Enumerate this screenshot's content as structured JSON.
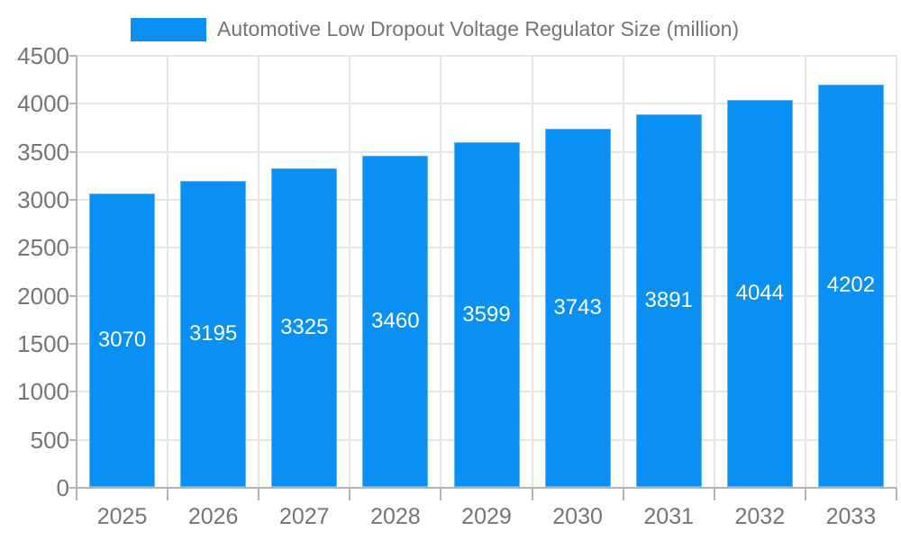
{
  "legend": {
    "label": "Automotive Low Dropout Voltage Regulator Size (million)"
  },
  "chart_data": {
    "type": "bar",
    "title": "Automotive Low Dropout Voltage Regulator Size (million)",
    "categories": [
      "2025",
      "2026",
      "2027",
      "2028",
      "2029",
      "2030",
      "2031",
      "2032",
      "2033"
    ],
    "values": [
      3070,
      3195,
      3325,
      3460,
      3599,
      3743,
      3891,
      4044,
      4202
    ],
    "xlabel": "",
    "ylabel": "",
    "ylim": [
      0,
      4500
    ],
    "ytick_step": 500,
    "yticks": [
      0,
      500,
      1000,
      1500,
      2000,
      2500,
      3000,
      3500,
      4000,
      4500
    ],
    "grid": true,
    "legend_position": "top",
    "value_labels": "centered-inside-bars",
    "colors": {
      "bar": "#0a8ff2",
      "grid": "#e6e6e6",
      "axis": "#b3b3b3",
      "text": "#757575",
      "value_label": "#ffffff",
      "background": "#ffffff"
    }
  }
}
